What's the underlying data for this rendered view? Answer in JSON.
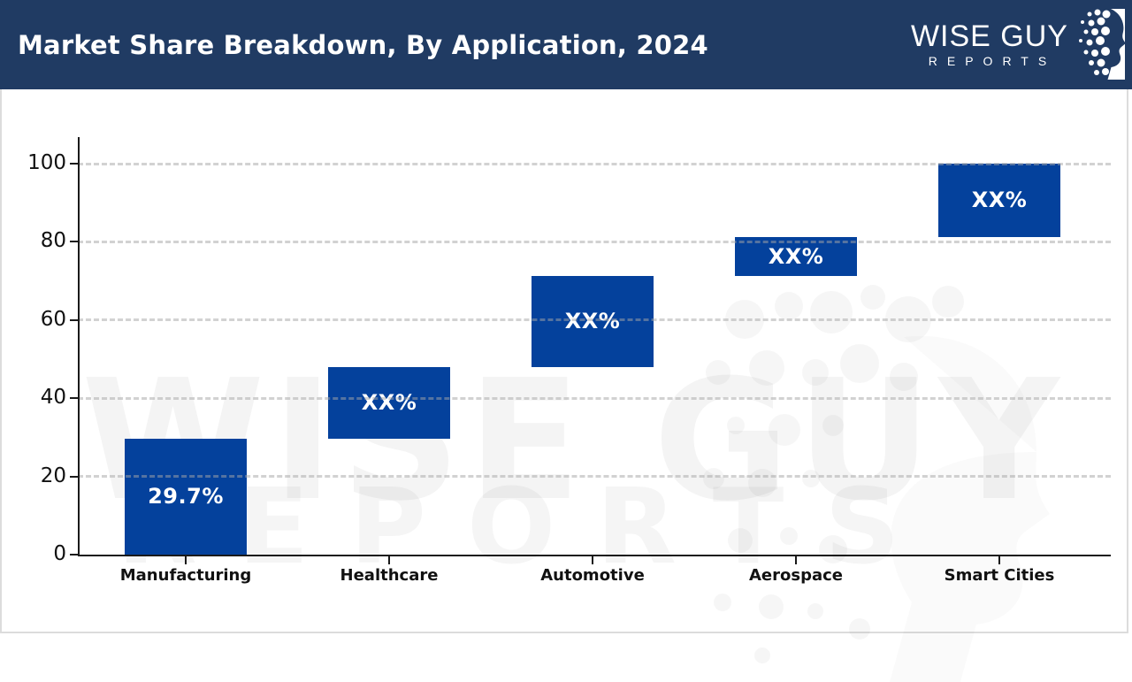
{
  "header": {
    "title": "Market Share Breakdown, By Application, 2024",
    "bg_color": "#203b63",
    "logo": {
      "line1": "WISE GUY",
      "line2": "REPORTS"
    }
  },
  "watermark": {
    "line1": "WISE GUY",
    "line2": "REPORTS"
  },
  "chart_data": {
    "type": "bar",
    "subtype": "waterfall-floating-bars",
    "title": "Market Share Breakdown, By Application, 2024",
    "categories": [
      "Manufacturing",
      "Healthcare",
      "Automotive",
      "Aerospace",
      "Smart Cities"
    ],
    "segments": [
      {
        "category": "Manufacturing",
        "start": 0,
        "end": 29.7,
        "label": "29.7%"
      },
      {
        "category": "Healthcare",
        "start": 29.7,
        "end": 48.0,
        "label": "XX%"
      },
      {
        "category": "Automotive",
        "start": 48.0,
        "end": 71.3,
        "label": "XX%"
      },
      {
        "category": "Aerospace",
        "start": 71.3,
        "end": 81.3,
        "label": "XX%"
      },
      {
        "category": "Smart Cities",
        "start": 81.3,
        "end": 100.0,
        "label": "XX%"
      }
    ],
    "yticks": [
      0,
      20,
      40,
      60,
      80,
      100
    ],
    "ylim": [
      0,
      105
    ],
    "xlabel": "",
    "ylabel": "",
    "grid": "horizontal-dashed",
    "legend": "none",
    "bar_color": "#04419c",
    "bar_label_color": "#ffffff",
    "axis_color": "#1a1a1a"
  }
}
